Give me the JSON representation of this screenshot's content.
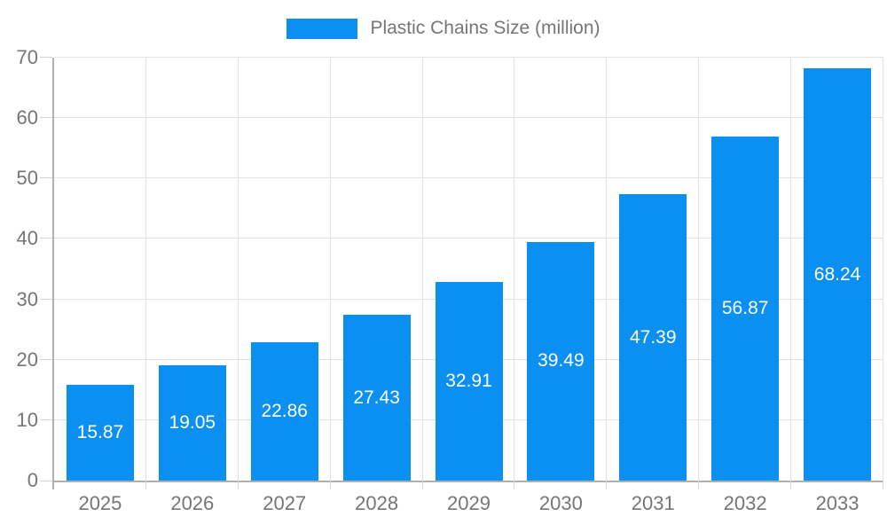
{
  "chart_data": {
    "type": "bar",
    "title": "",
    "legend": {
      "label": "Plastic Chains Size (million)",
      "position": "top"
    },
    "categories": [
      "2025",
      "2026",
      "2027",
      "2028",
      "2029",
      "2030",
      "2031",
      "2032",
      "2033"
    ],
    "series": [
      {
        "name": "Plastic Chains Size (million)",
        "values": [
          15.87,
          19.05,
          22.86,
          27.43,
          32.91,
          39.49,
          47.39,
          56.87,
          68.24
        ],
        "value_labels": [
          "15.87",
          "19.05",
          "22.86",
          "27.43",
          "32.91",
          "39.49",
          "47.39",
          "56.87",
          "68.24"
        ]
      }
    ],
    "xlabel": "",
    "ylabel": "",
    "ylim": [
      0,
      70
    ],
    "ytick_step": 10,
    "yticks": [
      0,
      10,
      20,
      30,
      40,
      50,
      60,
      70
    ],
    "grid": true,
    "colors": {
      "bar": "#0b90f2",
      "value_label": "#ffffff",
      "axis_text": "#757575",
      "gridline": "#e2e2e2",
      "axis_line": "#b0b0b0",
      "tick": "#d4d4d4",
      "background": "#ffffff"
    }
  }
}
